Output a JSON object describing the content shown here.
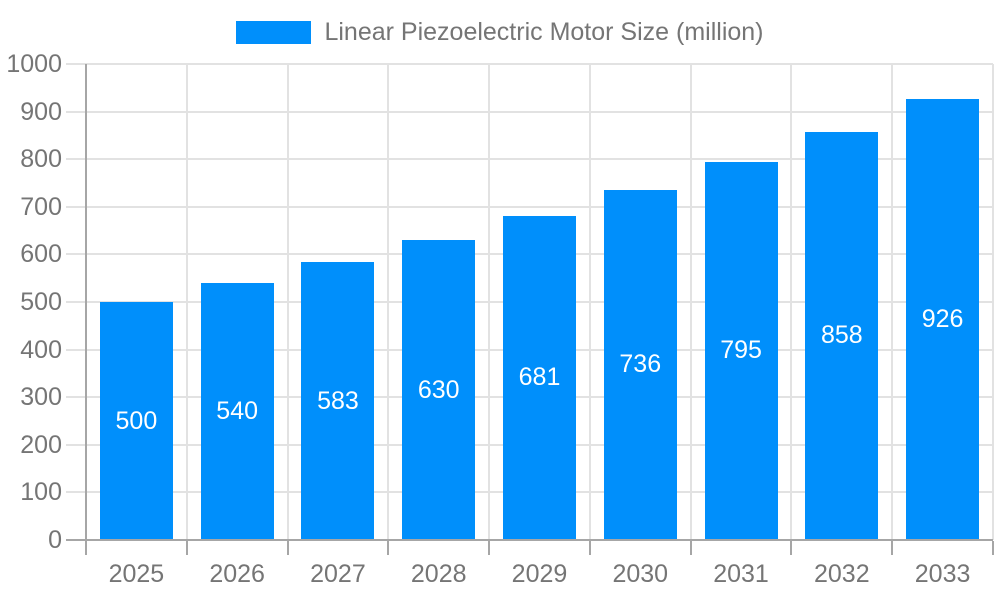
{
  "chart_data": {
    "type": "bar",
    "title": "",
    "legend": [
      "Linear Piezoelectric Motor Size (million)"
    ],
    "legend_position": "top",
    "categories": [
      "2025",
      "2026",
      "2027",
      "2028",
      "2029",
      "2030",
      "2031",
      "2032",
      "2033"
    ],
    "series": [
      {
        "name": "Linear Piezoelectric Motor Size (million)",
        "values": [
          500,
          540,
          583,
          630,
          681,
          736,
          795,
          858,
          926
        ]
      }
    ],
    "data_labels_shown": true,
    "xlabel": "",
    "ylabel": "",
    "ylim": [
      0,
      1000
    ],
    "yticks": [
      0,
      100,
      200,
      300,
      400,
      500,
      600,
      700,
      800,
      900,
      1000
    ],
    "grid": true,
    "colors": {
      "bar": "#008FFB",
      "bar_label": "#ffffff",
      "axis_text": "#757575",
      "grid": "#e2e2e2",
      "axis_line": "#a6a6a6",
      "background": "#ffffff"
    }
  }
}
